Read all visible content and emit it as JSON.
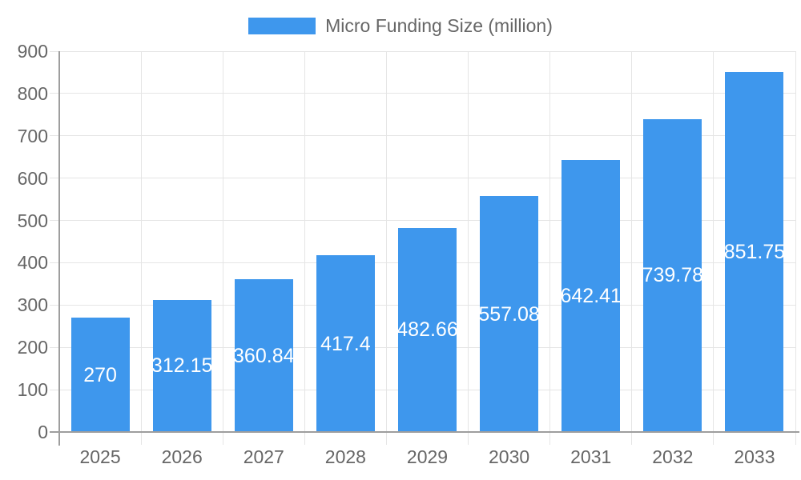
{
  "window": {
    "background": "#ffffff"
  },
  "colors": {
    "bar": "#3e97ed",
    "grid": "#e5e5e5",
    "axis": "#9e9e9e",
    "tick_text": "#666666",
    "legend_text": "#666666",
    "value_label_text": "#ffffff"
  },
  "chart_data": {
    "type": "bar",
    "title": "",
    "legend": "Micro Funding Size (million)",
    "legend_position": "top",
    "categories": [
      "2025",
      "2026",
      "2027",
      "2028",
      "2029",
      "2030",
      "2031",
      "2032",
      "2033"
    ],
    "values": [
      270,
      312.15,
      360.84,
      417.4,
      482.66,
      557.08,
      642.41,
      739.78,
      851.75
    ],
    "value_labels": [
      "270",
      "312.15",
      "360.84",
      "417.4",
      "482.66",
      "557.08",
      "642.41",
      "739.78",
      "851.75"
    ],
    "xlabel": "",
    "ylabel": "",
    "ylim": [
      0,
      900
    ],
    "ytick_step": 100,
    "grid": true,
    "value_labels_inside_bars": true
  }
}
